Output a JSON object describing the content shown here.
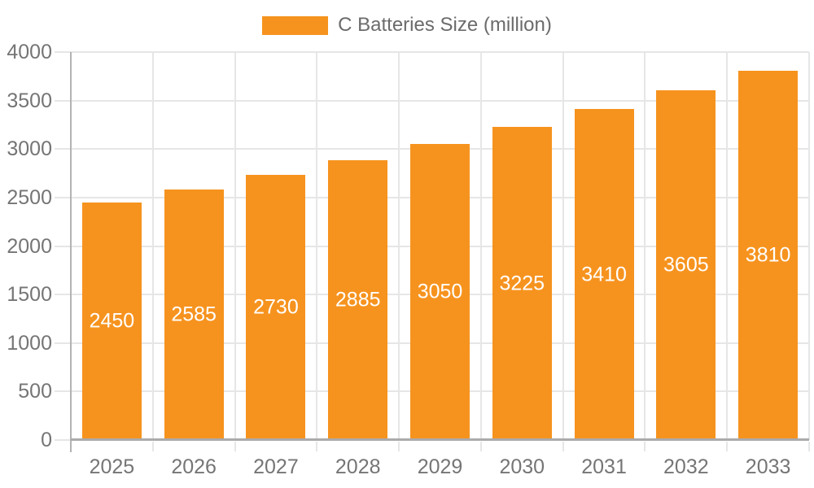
{
  "chart_data": {
    "type": "bar",
    "title": "",
    "legend_label": "C Batteries Size (million)",
    "legend_position": "top",
    "categories": [
      "2025",
      "2026",
      "2027",
      "2028",
      "2029",
      "2030",
      "2031",
      "2032",
      "2033"
    ],
    "series": [
      {
        "name": "C Batteries Size (million)",
        "values": [
          2450,
          2585,
          2730,
          2885,
          3050,
          3225,
          3410,
          3605,
          3810
        ]
      }
    ],
    "xlabel": "",
    "ylabel": "",
    "ylim": [
      0,
      4000
    ],
    "ytick_step": 500,
    "grid": true,
    "bar_labels_shown": true,
    "colors": {
      "bar": "#F6931E",
      "bar_label": "#FFFFFF",
      "axis_text": "#757575",
      "legend_text": "#6B6B6B",
      "gridline": "#E6E6E6",
      "axis_line": "#B3B3B3",
      "baseline": "#ABABAB"
    }
  }
}
